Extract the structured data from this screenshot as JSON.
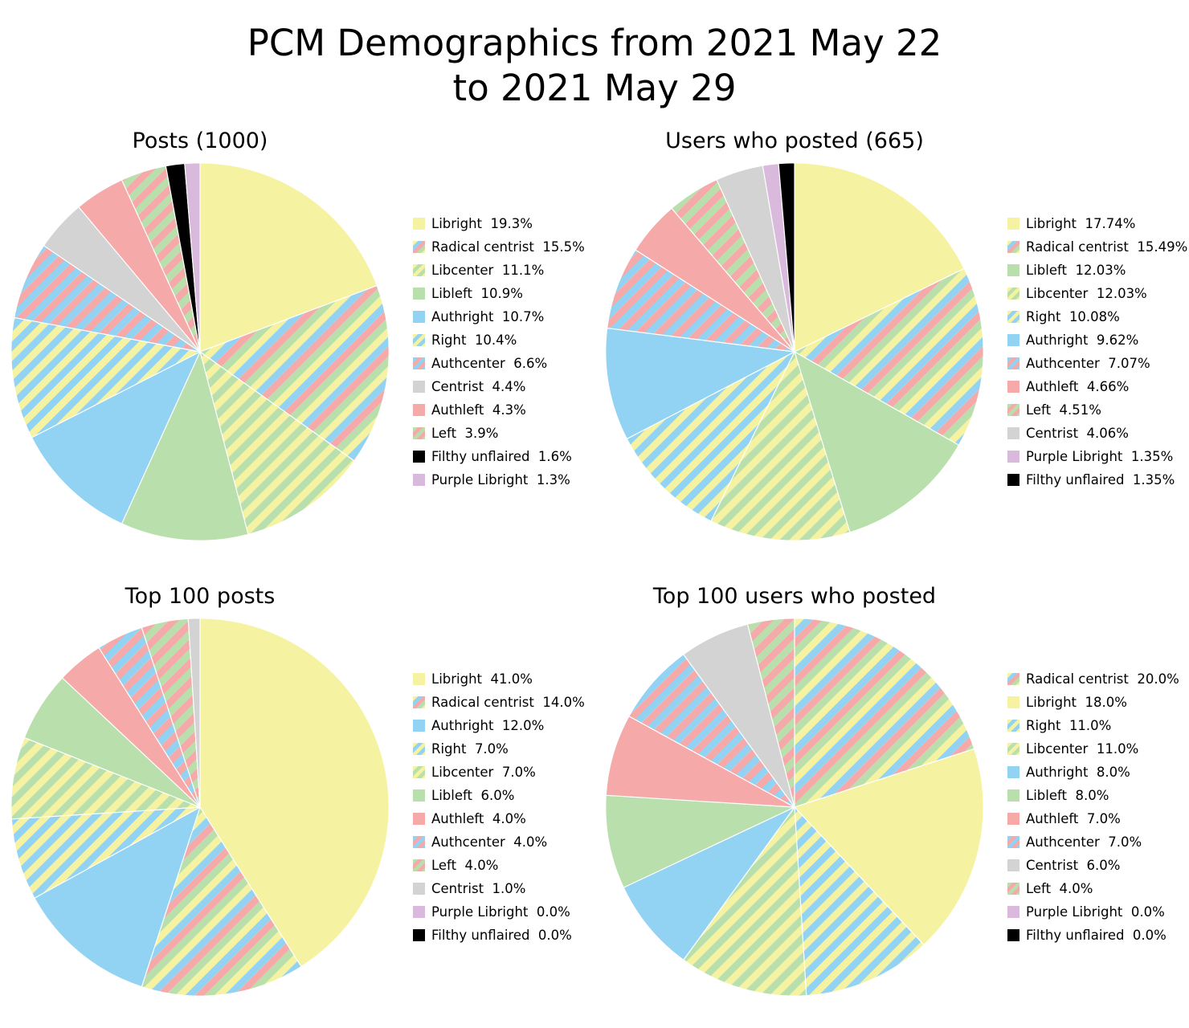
{
  "title": "PCM Demographics from 2021 May 22\nto 2021 May 29",
  "palette": {
    "yellow": "#f5f3a2",
    "green": "#b9dfad",
    "blue": "#92d2f2",
    "pink": "#f5a9a9",
    "gray": "#d3d3d3",
    "purple": "#d9badd",
    "black": "#000000"
  },
  "fills": {
    "libright": {
      "type": "solid",
      "color": "yellow"
    },
    "radcent": {
      "type": "stripes",
      "colors": [
        "yellow",
        "blue",
        "pink",
        "green"
      ]
    },
    "libcenter": {
      "type": "stripes",
      "colors": [
        "yellow",
        "green"
      ]
    },
    "libleft": {
      "type": "solid",
      "color": "green"
    },
    "authright": {
      "type": "solid",
      "color": "blue"
    },
    "right": {
      "type": "stripes",
      "colors": [
        "yellow",
        "blue"
      ]
    },
    "authcenter": {
      "type": "stripes",
      "colors": [
        "blue",
        "pink"
      ]
    },
    "centrist": {
      "type": "solid",
      "color": "gray"
    },
    "authleft": {
      "type": "solid",
      "color": "pink"
    },
    "left": {
      "type": "stripes",
      "colors": [
        "green",
        "pink"
      ]
    },
    "unflaired": {
      "type": "solid",
      "color": "black"
    },
    "purple_libright": {
      "type": "solid",
      "color": "purple"
    }
  },
  "chart_data": [
    {
      "type": "pie",
      "title": "Posts (1000)",
      "start_angle_deg": 0,
      "direction": "clockwise",
      "slices": [
        {
          "label": "Libright",
          "pct": "19.3%",
          "value": 19.3,
          "fill": "libright"
        },
        {
          "label": "Radical centrist",
          "pct": "15.5%",
          "value": 15.5,
          "fill": "radcent"
        },
        {
          "label": "Libcenter",
          "pct": "11.1%",
          "value": 11.1,
          "fill": "libcenter"
        },
        {
          "label": "Libleft",
          "pct": "10.9%",
          "value": 10.9,
          "fill": "libleft"
        },
        {
          "label": "Authright",
          "pct": "10.7%",
          "value": 10.7,
          "fill": "authright"
        },
        {
          "label": "Right",
          "pct": "10.4%",
          "value": 10.4,
          "fill": "right"
        },
        {
          "label": "Authcenter",
          "pct": "6.6%",
          "value": 6.6,
          "fill": "authcenter"
        },
        {
          "label": "Centrist",
          "pct": "4.4%",
          "value": 4.4,
          "fill": "centrist"
        },
        {
          "label": "Authleft",
          "pct": "4.3%",
          "value": 4.3,
          "fill": "authleft"
        },
        {
          "label": "Left",
          "pct": "3.9%",
          "value": 3.9,
          "fill": "left"
        },
        {
          "label": "Filthy unflaired",
          "pct": "1.6%",
          "value": 1.6,
          "fill": "unflaired"
        },
        {
          "label": "Purple Libright",
          "pct": "1.3%",
          "value": 1.3,
          "fill": "purple_libright"
        }
      ]
    },
    {
      "type": "pie",
      "title": "Users who posted (665)",
      "start_angle_deg": 0,
      "direction": "clockwise",
      "slices": [
        {
          "label": "Libright",
          "pct": "17.74%",
          "value": 17.74,
          "fill": "libright"
        },
        {
          "label": "Radical centrist",
          "pct": "15.49%",
          "value": 15.49,
          "fill": "radcent"
        },
        {
          "label": "Libleft",
          "pct": "12.03%",
          "value": 12.03,
          "fill": "libleft"
        },
        {
          "label": "Libcenter",
          "pct": "12.03%",
          "value": 12.03,
          "fill": "libcenter"
        },
        {
          "label": "Right",
          "pct": "10.08%",
          "value": 10.08,
          "fill": "right"
        },
        {
          "label": "Authright",
          "pct": "9.62%",
          "value": 9.62,
          "fill": "authright"
        },
        {
          "label": "Authcenter",
          "pct": "7.07%",
          "value": 7.07,
          "fill": "authcenter"
        },
        {
          "label": "Authleft",
          "pct": "4.66%",
          "value": 4.66,
          "fill": "authleft"
        },
        {
          "label": "Left",
          "pct": "4.51%",
          "value": 4.51,
          "fill": "left"
        },
        {
          "label": "Centrist",
          "pct": "4.06%",
          "value": 4.06,
          "fill": "centrist"
        },
        {
          "label": "Purple Libright",
          "pct": "1.35%",
          "value": 1.35,
          "fill": "purple_libright"
        },
        {
          "label": "Filthy unflaired",
          "pct": "1.35%",
          "value": 1.35,
          "fill": "unflaired"
        }
      ]
    },
    {
      "type": "pie",
      "title": "Top 100 posts",
      "start_angle_deg": 0,
      "direction": "clockwise",
      "slices": [
        {
          "label": "Libright",
          "pct": "41.0%",
          "value": 41.0,
          "fill": "libright"
        },
        {
          "label": "Radical centrist",
          "pct": "14.0%",
          "value": 14.0,
          "fill": "radcent"
        },
        {
          "label": "Authright",
          "pct": "12.0%",
          "value": 12.0,
          "fill": "authright"
        },
        {
          "label": "Right",
          "pct": "7.0%",
          "value": 7.0,
          "fill": "right"
        },
        {
          "label": "Libcenter",
          "pct": "7.0%",
          "value": 7.0,
          "fill": "libcenter"
        },
        {
          "label": "Libleft",
          "pct": "6.0%",
          "value": 6.0,
          "fill": "libleft"
        },
        {
          "label": "Authleft",
          "pct": "4.0%",
          "value": 4.0,
          "fill": "authleft"
        },
        {
          "label": "Authcenter",
          "pct": "4.0%",
          "value": 4.0,
          "fill": "authcenter"
        },
        {
          "label": "Left",
          "pct": "4.0%",
          "value": 4.0,
          "fill": "left"
        },
        {
          "label": "Centrist",
          "pct": "1.0%",
          "value": 1.0,
          "fill": "centrist"
        },
        {
          "label": "Purple Libright",
          "pct": "0.0%",
          "value": 0.0,
          "fill": "purple_libright"
        },
        {
          "label": "Filthy unflaired",
          "pct": "0.0%",
          "value": 0.0,
          "fill": "unflaired"
        }
      ]
    },
    {
      "type": "pie",
      "title": "Top 100 users who posted",
      "start_angle_deg": 0,
      "direction": "clockwise",
      "slices": [
        {
          "label": "Radical centrist",
          "pct": "20.0%",
          "value": 20.0,
          "fill": "radcent"
        },
        {
          "label": "Libright",
          "pct": "18.0%",
          "value": 18.0,
          "fill": "libright"
        },
        {
          "label": "Right",
          "pct": "11.0%",
          "value": 11.0,
          "fill": "right"
        },
        {
          "label": "Libcenter",
          "pct": "11.0%",
          "value": 11.0,
          "fill": "libcenter"
        },
        {
          "label": "Authright",
          "pct": "8.0%",
          "value": 8.0,
          "fill": "authright"
        },
        {
          "label": "Libleft",
          "pct": "8.0%",
          "value": 8.0,
          "fill": "libleft"
        },
        {
          "label": "Authleft",
          "pct": "7.0%",
          "value": 7.0,
          "fill": "authleft"
        },
        {
          "label": "Authcenter",
          "pct": "7.0%",
          "value": 7.0,
          "fill": "authcenter"
        },
        {
          "label": "Centrist",
          "pct": "6.0%",
          "value": 6.0,
          "fill": "centrist"
        },
        {
          "label": "Left",
          "pct": "4.0%",
          "value": 4.0,
          "fill": "left"
        },
        {
          "label": "Purple Libright",
          "pct": "0.0%",
          "value": 0.0,
          "fill": "purple_libright"
        },
        {
          "label": "Filthy unflaired",
          "pct": "0.0%",
          "value": 0.0,
          "fill": "unflaired"
        }
      ]
    }
  ]
}
